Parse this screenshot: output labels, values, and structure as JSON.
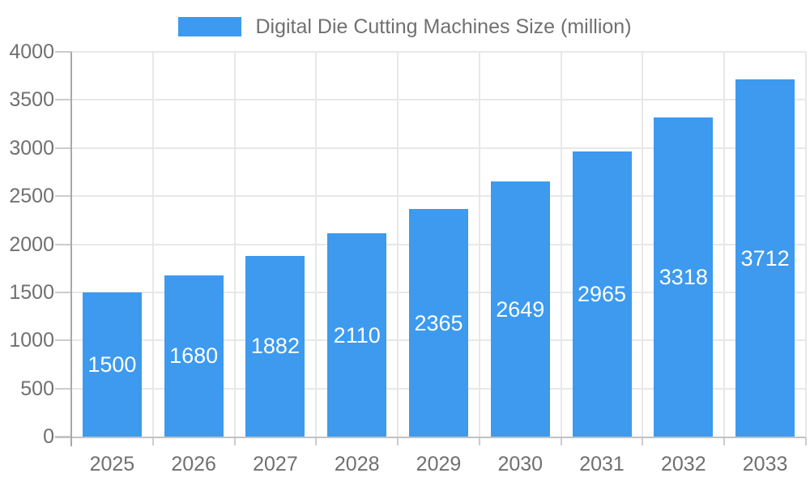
{
  "chart": {
    "legend": {
      "label": "Digital Die Cutting Machines Size (million)"
    }
  },
  "chart_data": {
    "type": "bar",
    "title": "Digital Die Cutting Machines Size (million)",
    "categories": [
      "2025",
      "2026",
      "2027",
      "2028",
      "2029",
      "2030",
      "2031",
      "2032",
      "2033"
    ],
    "series": [
      {
        "name": "Digital Die Cutting Machines Size (million)",
        "values": [
          1500,
          1680,
          1882,
          2110,
          2365,
          2649,
          2965,
          3318,
          3712
        ]
      }
    ],
    "xlabel": "",
    "ylabel": "",
    "ylim": [
      0,
      4000
    ],
    "ytick_step": 500,
    "ytick_labels": [
      "0",
      "500",
      "1000",
      "1500",
      "2000",
      "2500",
      "3000",
      "3500",
      "4000"
    ],
    "grid": true,
    "legend_position": "top-center",
    "value_labels_inside_bars": true,
    "colors": {
      "bar": "#3d9aee",
      "value_label": "#ffffff",
      "axis_text": "#707070",
      "gridline": "#e8e8e8",
      "y_axis_line": "#a8a8a8",
      "x_axis_line": "#c2c2c2",
      "tick": "#cccccc",
      "background": "#ffffff"
    }
  }
}
